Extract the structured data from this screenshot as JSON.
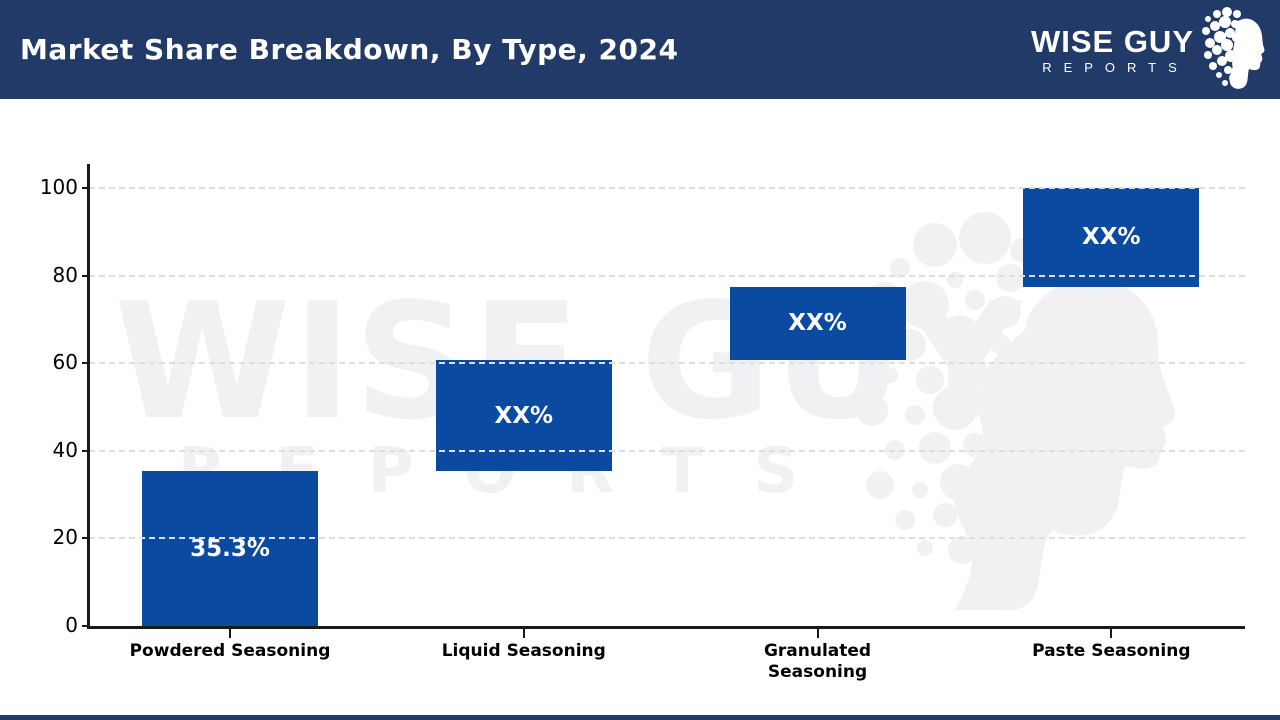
{
  "header": {
    "title": "Market Share Breakdown, By Type, 2024",
    "logo": {
      "name": "WISE GUY",
      "subtitle": "REPORTS"
    }
  },
  "watermark": {
    "line1": "WISE GUY",
    "line2": "REPORTS"
  },
  "colors": {
    "header_bg": "#223a68",
    "footer_bg": "#223a68",
    "bar": "#0a4aa0",
    "bar_label": "#ffffff",
    "axis": "#1a1a1a",
    "gridline": "#dedede",
    "watermark": "#f1f1f3"
  },
  "chart_data": {
    "type": "bar",
    "subtype": "waterfall",
    "title": "Market Share Breakdown, By Type, 2024",
    "xlabel": "",
    "ylabel": "",
    "ylim": [
      0,
      100
    ],
    "yticks": [
      0,
      20,
      40,
      60,
      80,
      100
    ],
    "grid": "horizontal-dashed",
    "legend": "none",
    "categories": [
      "Powdered Seasoning",
      "Liquid Seasoning",
      "Granulated\nSeasoning",
      "Paste Seasoning"
    ],
    "segments": [
      {
        "category": "Powdered Seasoning",
        "from": 0,
        "to": 35.3,
        "label": "35.3%"
      },
      {
        "category": "Liquid Seasoning",
        "from": 35.3,
        "to": 60.7,
        "label": "XX%"
      },
      {
        "category": "Granulated Seasoning",
        "from": 60.7,
        "to": 77.5,
        "label": "XX%"
      },
      {
        "category": "Paste Seasoning",
        "from": 77.5,
        "to": 100,
        "label": "XX%"
      }
    ]
  }
}
